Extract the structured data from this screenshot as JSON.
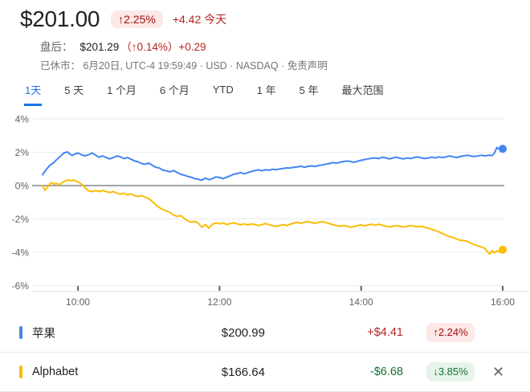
{
  "header": {
    "price": "$201.00",
    "change_pct": "↑2.25%",
    "change_abs_today": "+4.42 今天",
    "direction": "up"
  },
  "after_hours": {
    "label": "盘后：",
    "price": "$201.29",
    "change": "（↑0.14%）+0.29",
    "direction": "up"
  },
  "market": {
    "status": "已休市： 6月20日, UTC-4 19:59:49 · USD · NASDAQ ·",
    "disclaimer": "免责声明"
  },
  "tabs": [
    {
      "label": "1天",
      "active": true
    },
    {
      "label": "5 天",
      "active": false
    },
    {
      "label": "1 个月",
      "active": false
    },
    {
      "label": "6 个月",
      "active": false
    },
    {
      "label": "YTD",
      "active": false
    },
    {
      "label": "1 年",
      "active": false
    },
    {
      "label": "5 年",
      "active": false
    },
    {
      "label": "最大范围",
      "active": false
    }
  ],
  "colors": {
    "accent": "#1a73e8",
    "up_text": "#b3261e",
    "up_badge_text": "#a50e0e",
    "up_badge_bg": "#fce8e6",
    "down_text": "#137333",
    "down_badge_bg": "#e6f4ea",
    "text_primary": "#202124",
    "text_secondary": "#5f6368",
    "text_tertiary": "#70757a",
    "grid": "#e8eaed",
    "zero_line": "#80868b",
    "axis": "#dadce0",
    "divider": "#e4e6e8",
    "line_blue": "#4285f4",
    "line_yellow": "#fbbc04"
  },
  "chart_data": {
    "type": "line",
    "title": "",
    "xlabel": "",
    "ylabel": "%",
    "legend_position": "bottom",
    "grid": true,
    "x_axis": {
      "start_min": 0,
      "end_min": 390,
      "ticks": [
        {
          "t": 30,
          "label": "10:00"
        },
        {
          "t": 150,
          "label": "12:00"
        },
        {
          "t": 270,
          "label": "14:00"
        },
        {
          "t": 390,
          "label": "16:00"
        }
      ]
    },
    "y_axis": {
      "unit": "%",
      "ticks": [
        4,
        2,
        0,
        -2,
        -4,
        -6
      ],
      "range": [
        -6.5,
        4.5
      ]
    },
    "series": [
      {
        "name": "苹果",
        "color": "#4285f4",
        "end_dot": true,
        "end_value_pct": 2.2,
        "points": [
          [
            0,
            0.65
          ],
          [
            3,
            0.95
          ],
          [
            6,
            1.2
          ],
          [
            9,
            1.35
          ],
          [
            12,
            1.55
          ],
          [
            15,
            1.75
          ],
          [
            18,
            1.95
          ],
          [
            21,
            2.02
          ],
          [
            23,
            1.9
          ],
          [
            25,
            1.8
          ],
          [
            27,
            1.88
          ],
          [
            30,
            1.95
          ],
          [
            33,
            1.85
          ],
          [
            36,
            1.78
          ],
          [
            39,
            1.85
          ],
          [
            42,
            1.95
          ],
          [
            45,
            1.82
          ],
          [
            48,
            1.7
          ],
          [
            51,
            1.78
          ],
          [
            54,
            1.68
          ],
          [
            57,
            1.6
          ],
          [
            60,
            1.68
          ],
          [
            63,
            1.78
          ],
          [
            66,
            1.72
          ],
          [
            69,
            1.62
          ],
          [
            72,
            1.68
          ],
          [
            75,
            1.58
          ],
          [
            78,
            1.48
          ],
          [
            81,
            1.42
          ],
          [
            84,
            1.32
          ],
          [
            87,
            1.28
          ],
          [
            90,
            1.35
          ],
          [
            93,
            1.22
          ],
          [
            96,
            1.1
          ],
          [
            99,
            1.05
          ],
          [
            102,
            0.92
          ],
          [
            105,
            0.88
          ],
          [
            108,
            0.82
          ],
          [
            111,
            0.9
          ],
          [
            114,
            0.78
          ],
          [
            117,
            0.68
          ],
          [
            120,
            0.62
          ],
          [
            123,
            0.55
          ],
          [
            126,
            0.5
          ],
          [
            129,
            0.42
          ],
          [
            132,
            0.38
          ],
          [
            135,
            0.32
          ],
          [
            138,
            0.45
          ],
          [
            141,
            0.35
          ],
          [
            144,
            0.42
          ],
          [
            147,
            0.52
          ],
          [
            150,
            0.48
          ],
          [
            153,
            0.42
          ],
          [
            156,
            0.5
          ],
          [
            159,
            0.58
          ],
          [
            162,
            0.68
          ],
          [
            165,
            0.72
          ],
          [
            168,
            0.78
          ],
          [
            171,
            0.7
          ],
          [
            174,
            0.78
          ],
          [
            177,
            0.85
          ],
          [
            180,
            0.9
          ],
          [
            183,
            0.95
          ],
          [
            186,
            0.88
          ],
          [
            189,
            0.95
          ],
          [
            192,
            0.92
          ],
          [
            195,
            0.98
          ],
          [
            198,
            0.95
          ],
          [
            201,
            1.0
          ],
          [
            204,
            1.02
          ],
          [
            207,
            1.06
          ],
          [
            210,
            1.05
          ],
          [
            213,
            1.1
          ],
          [
            216,
            1.12
          ],
          [
            219,
            1.16
          ],
          [
            222,
            1.1
          ],
          [
            225,
            1.15
          ],
          [
            228,
            1.18
          ],
          [
            231,
            1.14
          ],
          [
            234,
            1.2
          ],
          [
            237,
            1.24
          ],
          [
            240,
            1.28
          ],
          [
            243,
            1.32
          ],
          [
            246,
            1.38
          ],
          [
            249,
            1.34
          ],
          [
            252,
            1.4
          ],
          [
            255,
            1.44
          ],
          [
            258,
            1.48
          ],
          [
            261,
            1.44
          ],
          [
            264,
            1.4
          ],
          [
            267,
            1.46
          ],
          [
            270,
            1.52
          ],
          [
            273,
            1.56
          ],
          [
            276,
            1.6
          ],
          [
            279,
            1.64
          ],
          [
            282,
            1.66
          ],
          [
            285,
            1.62
          ],
          [
            288,
            1.7
          ],
          [
            291,
            1.66
          ],
          [
            294,
            1.6
          ],
          [
            297,
            1.66
          ],
          [
            300,
            1.7
          ],
          [
            303,
            1.64
          ],
          [
            306,
            1.6
          ],
          [
            309,
            1.66
          ],
          [
            312,
            1.62
          ],
          [
            315,
            1.68
          ],
          [
            318,
            1.72
          ],
          [
            321,
            1.66
          ],
          [
            324,
            1.62
          ],
          [
            327,
            1.66
          ],
          [
            330,
            1.7
          ],
          [
            333,
            1.66
          ],
          [
            336,
            1.72
          ],
          [
            339,
            1.68
          ],
          [
            342,
            1.72
          ],
          [
            345,
            1.78
          ],
          [
            348,
            1.72
          ],
          [
            351,
            1.68
          ],
          [
            354,
            1.74
          ],
          [
            357,
            1.78
          ],
          [
            360,
            1.82
          ],
          [
            363,
            1.78
          ],
          [
            366,
            1.74
          ],
          [
            369,
            1.78
          ],
          [
            372,
            1.82
          ],
          [
            375,
            1.78
          ],
          [
            378,
            1.82
          ],
          [
            381,
            1.8
          ],
          [
            383,
            1.95
          ],
          [
            385,
            2.28
          ],
          [
            387,
            2.18
          ],
          [
            390,
            2.2
          ]
        ]
      },
      {
        "name": "Alphabet",
        "color": "#fbbc04",
        "end_dot": true,
        "end_value_pct": -3.85,
        "points": [
          [
            0,
            0
          ],
          [
            2,
            -0.28
          ],
          [
            4,
            -0.12
          ],
          [
            6,
            0.08
          ],
          [
            8,
            0.18
          ],
          [
            10,
            0.08
          ],
          [
            12,
            0.14
          ],
          [
            14,
            0.04
          ],
          [
            16,
            0.14
          ],
          [
            18,
            0.24
          ],
          [
            20,
            0.3
          ],
          [
            22,
            0.34
          ],
          [
            24,
            0.28
          ],
          [
            26,
            0.34
          ],
          [
            28,
            0.28
          ],
          [
            30,
            0.22
          ],
          [
            33,
            0.08
          ],
          [
            36,
            -0.12
          ],
          [
            39,
            -0.32
          ],
          [
            42,
            -0.36
          ],
          [
            45,
            -0.3
          ],
          [
            48,
            -0.36
          ],
          [
            51,
            -0.3
          ],
          [
            54,
            -0.36
          ],
          [
            57,
            -0.42
          ],
          [
            60,
            -0.36
          ],
          [
            63,
            -0.46
          ],
          [
            66,
            -0.52
          ],
          [
            69,
            -0.46
          ],
          [
            72,
            -0.56
          ],
          [
            75,
            -0.5
          ],
          [
            78,
            -0.6
          ],
          [
            81,
            -0.66
          ],
          [
            84,
            -0.6
          ],
          [
            87,
            -0.7
          ],
          [
            90,
            -0.78
          ],
          [
            93,
            -0.95
          ],
          [
            96,
            -1.15
          ],
          [
            99,
            -1.32
          ],
          [
            102,
            -1.45
          ],
          [
            105,
            -1.52
          ],
          [
            108,
            -1.62
          ],
          [
            111,
            -1.76
          ],
          [
            114,
            -1.86
          ],
          [
            117,
            -1.8
          ],
          [
            120,
            -1.96
          ],
          [
            123,
            -2.1
          ],
          [
            126,
            -2.2
          ],
          [
            129,
            -2.14
          ],
          [
            132,
            -2.26
          ],
          [
            135,
            -2.5
          ],
          [
            138,
            -2.34
          ],
          [
            141,
            -2.56
          ],
          [
            144,
            -2.32
          ],
          [
            147,
            -2.24
          ],
          [
            150,
            -2.3
          ],
          [
            153,
            -2.24
          ],
          [
            156,
            -2.34
          ],
          [
            159,
            -2.28
          ],
          [
            162,
            -2.24
          ],
          [
            165,
            -2.3
          ],
          [
            168,
            -2.36
          ],
          [
            171,
            -2.3
          ],
          [
            174,
            -2.36
          ],
          [
            177,
            -2.3
          ],
          [
            180,
            -2.34
          ],
          [
            183,
            -2.4
          ],
          [
            186,
            -2.34
          ],
          [
            189,
            -2.28
          ],
          [
            192,
            -2.34
          ],
          [
            195,
            -2.4
          ],
          [
            198,
            -2.46
          ],
          [
            201,
            -2.4
          ],
          [
            204,
            -2.34
          ],
          [
            207,
            -2.4
          ],
          [
            210,
            -2.32
          ],
          [
            213,
            -2.26
          ],
          [
            216,
            -2.2
          ],
          [
            219,
            -2.26
          ],
          [
            222,
            -2.2
          ],
          [
            225,
            -2.16
          ],
          [
            228,
            -2.22
          ],
          [
            231,
            -2.26
          ],
          [
            234,
            -2.2
          ],
          [
            237,
            -2.16
          ],
          [
            240,
            -2.22
          ],
          [
            243,
            -2.28
          ],
          [
            246,
            -2.34
          ],
          [
            249,
            -2.4
          ],
          [
            252,
            -2.44
          ],
          [
            255,
            -2.4
          ],
          [
            258,
            -2.44
          ],
          [
            261,
            -2.5
          ],
          [
            264,
            -2.46
          ],
          [
            267,
            -2.4
          ],
          [
            270,
            -2.36
          ],
          [
            273,
            -2.42
          ],
          [
            276,
            -2.36
          ],
          [
            279,
            -2.32
          ],
          [
            282,
            -2.38
          ],
          [
            285,
            -2.32
          ],
          [
            288,
            -2.38
          ],
          [
            291,
            -2.44
          ],
          [
            294,
            -2.48
          ],
          [
            297,
            -2.44
          ],
          [
            300,
            -2.4
          ],
          [
            303,
            -2.44
          ],
          [
            306,
            -2.48
          ],
          [
            309,
            -2.44
          ],
          [
            312,
            -2.4
          ],
          [
            315,
            -2.44
          ],
          [
            318,
            -2.48
          ],
          [
            321,
            -2.44
          ],
          [
            324,
            -2.5
          ],
          [
            327,
            -2.56
          ],
          [
            330,
            -2.62
          ],
          [
            333,
            -2.7
          ],
          [
            336,
            -2.78
          ],
          [
            339,
            -2.88
          ],
          [
            342,
            -2.98
          ],
          [
            345,
            -3.06
          ],
          [
            348,
            -3.12
          ],
          [
            351,
            -3.2
          ],
          [
            354,
            -3.28
          ],
          [
            357,
            -3.3
          ],
          [
            360,
            -3.35
          ],
          [
            363,
            -3.45
          ],
          [
            366,
            -3.55
          ],
          [
            369,
            -3.62
          ],
          [
            372,
            -3.68
          ],
          [
            375,
            -3.78
          ],
          [
            377,
            -3.95
          ],
          [
            379,
            -4.12
          ],
          [
            381,
            -3.9
          ],
          [
            383,
            -4.05
          ],
          [
            385,
            -3.92
          ],
          [
            387,
            -3.96
          ],
          [
            390,
            -3.85
          ]
        ]
      }
    ]
  },
  "quotes": {
    "close_icon": "✕",
    "rows": [
      {
        "name": "苹果",
        "marker_color": "#4285f4",
        "price": "$200.99",
        "change": "+$4.41",
        "badge": "↑2.24%",
        "direction": "up",
        "closable": false
      },
      {
        "name": "Alphabet",
        "marker_color": "#fbbc04",
        "price": "$166.64",
        "change": "-$6.68",
        "badge": "↓3.85%",
        "direction": "down",
        "closable": true
      }
    ]
  }
}
